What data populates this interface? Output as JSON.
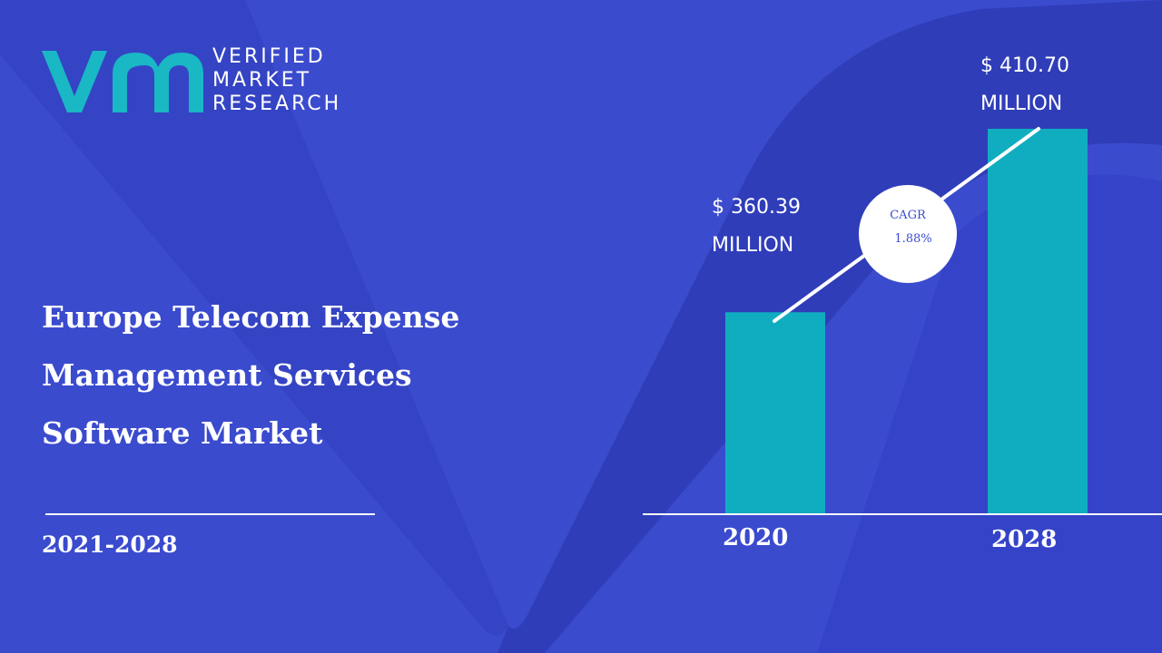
{
  "logo": {
    "line1": "VERIFIED",
    "line2": "MARKET",
    "line3": "RESEARCH"
  },
  "title_lines": [
    "Europe Telecom Expense",
    "Management Services",
    "Software Market"
  ],
  "period": "2021-2028",
  "colors": {
    "background": "#3b4bce",
    "shape_dark": "#2f3db9",
    "bar": "#10adc0",
    "logo_teal": "#1ab7c5",
    "text": "#ffffff"
  },
  "chart_data": {
    "type": "bar",
    "categories": [
      "2020",
      "2028"
    ],
    "values": [
      360.39,
      410.7
    ],
    "value_labels": [
      {
        "amount": "$  360.39",
        "unit": "MILLION"
      },
      {
        "amount": "$  410.70",
        "unit": "MILLION"
      }
    ],
    "cagr_label": "CAGR",
    "cagr_value": "1.88%",
    "title": "",
    "xlabel": "",
    "ylabel": ""
  }
}
